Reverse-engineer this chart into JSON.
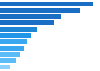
{
  "values": [
    95,
    82,
    62,
    55,
    38,
    32,
    28,
    24,
    20,
    16,
    10
  ],
  "colors": [
    "#1a6fc4",
    "#1a6fc4",
    "#1a6fc4",
    "#1a6fc4",
    "#1e86d4",
    "#2196e8",
    "#3aa8f0",
    "#3aa8f0",
    "#5bbcf8",
    "#5bbcf8",
    "#8ed0fc"
  ],
  "background_color": "#ffffff",
  "bar_height": 0.75,
  "xlim": [
    0,
    100
  ]
}
